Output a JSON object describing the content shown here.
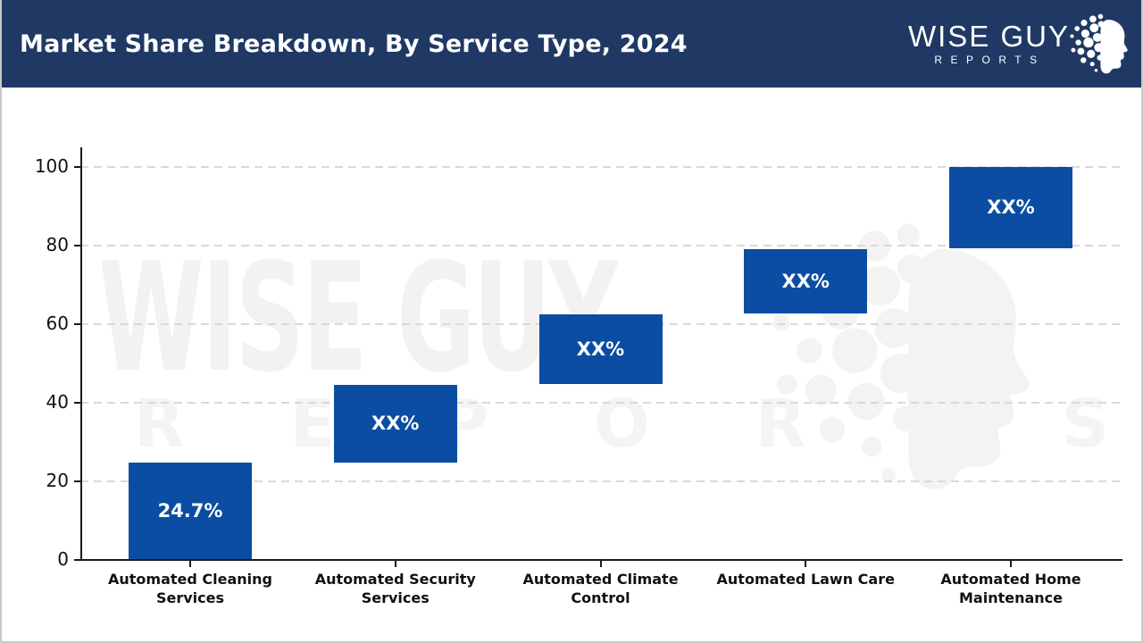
{
  "header": {
    "title": "Market Share Breakdown, By Service Type, 2024",
    "logo": {
      "name": "WISE GUY",
      "sub": "REPORTS"
    }
  },
  "watermark": {
    "line1": "WISE GUY",
    "line2": "R E P O R T S"
  },
  "chart_data": {
    "type": "bar",
    "subtype": "waterfall",
    "title": "Market Share Breakdown, By Service Type, 2024",
    "categories": [
      "Automated Cleaning Services",
      "Automated Security Services",
      "Automated Climate Control",
      "Automated Lawn Care",
      "Automated Home Maintenance"
    ],
    "segments": [
      {
        "category": "Automated Cleaning Services",
        "start": 0,
        "end": 24.7,
        "label": "24.7%"
      },
      {
        "category": "Automated Security Services",
        "start": 24.7,
        "end": 44.5,
        "label": "XX%"
      },
      {
        "category": "Automated Climate Control",
        "start": 44.7,
        "end": 62.5,
        "label": "XX%"
      },
      {
        "category": "Automated Lawn Care",
        "start": 62.7,
        "end": 79.1,
        "label": "XX%"
      },
      {
        "category": "Automated Home Maintenance",
        "start": 79.4,
        "end": 100,
        "label": "XX%"
      }
    ],
    "xlabel": "",
    "ylabel": "",
    "ylim": [
      0,
      100
    ],
    "yticks": [
      0,
      20,
      40,
      60,
      80,
      100
    ],
    "grid": "horizontal-dashed",
    "legend": "none",
    "bar_color": "#0b4da2",
    "bar_label_color": "#ffffff"
  },
  "colors": {
    "header_bg": "#1f3864",
    "bar": "#0b4da2",
    "grid": "#d9d9d9",
    "axis": "#1a1a1a",
    "watermark": "#f2f2f2"
  }
}
